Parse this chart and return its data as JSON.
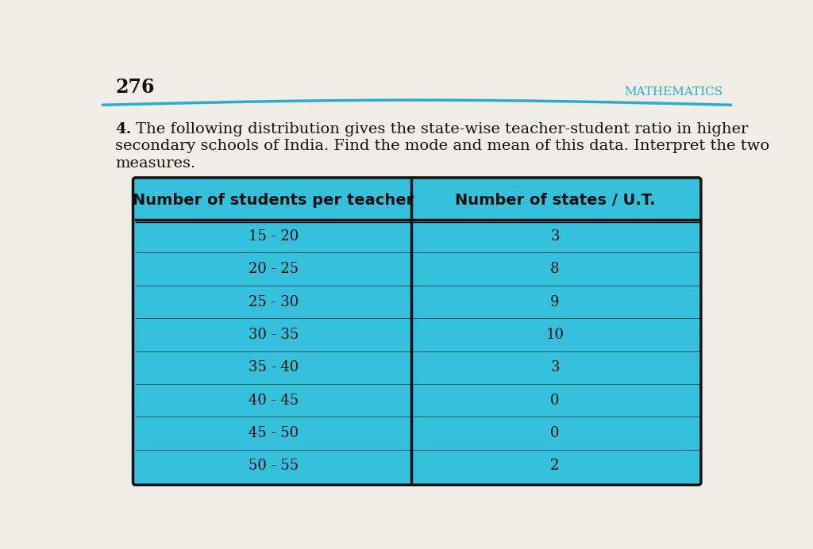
{
  "page_number": "276",
  "header_text": "MATHEMATICS",
  "question_number": "4.",
  "question_line1": "The following distribution gives the state-wise teacher-student ratio in higher",
  "question_line2": "secondary schools of India. Find the mode and mean of this data. Interpret the two",
  "question_line3": "measures.",
  "col1_header": "Number of students per teacher",
  "col2_header": "Number of states / U.T.",
  "rows": [
    [
      "15 - 20",
      "3"
    ],
    [
      "20 - 25",
      "8"
    ],
    [
      "25 - 30",
      "9"
    ],
    [
      "30 - 35",
      "10"
    ],
    [
      "35 - 40",
      "3"
    ],
    [
      "40 - 45",
      "0"
    ],
    [
      "45 - 50",
      "0"
    ],
    [
      "50 - 55",
      "2"
    ]
  ],
  "table_bg_color": "#35C0DC",
  "page_bg_color": "#F0EDE6",
  "text_color": "#111111",
  "border_color": "#111111",
  "page_number_color": "#111111",
  "math_header_color": "#2AACCC",
  "line_color": "#2AACCC",
  "question_fontsize": 14,
  "header_fontsize": 14,
  "cell_fontsize": 13,
  "page_num_fontsize": 17
}
